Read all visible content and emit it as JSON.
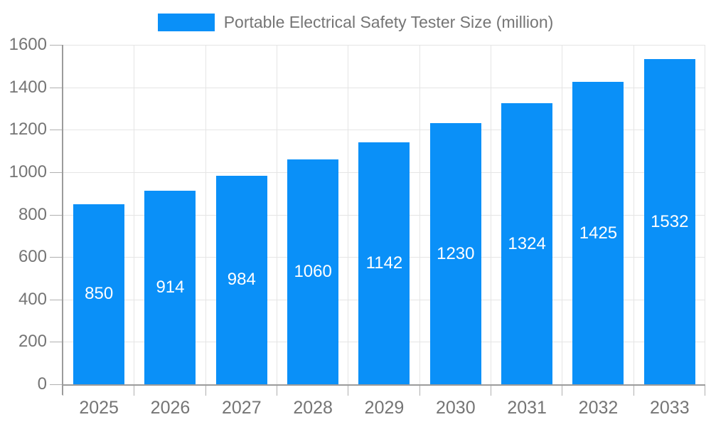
{
  "chart_data": {
    "type": "bar",
    "title": "Portable Electrical Safety Tester Size (million)",
    "categories": [
      "2025",
      "2026",
      "2027",
      "2028",
      "2029",
      "2030",
      "2031",
      "2032",
      "2033"
    ],
    "values": [
      850,
      914,
      984,
      1060,
      1142,
      1230,
      1324,
      1425,
      1532
    ],
    "xlabel": "",
    "ylabel": "",
    "ylim": [
      0,
      1600
    ],
    "yticks": [
      0,
      200,
      400,
      600,
      800,
      1000,
      1200,
      1400,
      1600
    ],
    "grid": true,
    "legend_position": "top",
    "bar_label_position": "center-of-bar",
    "colors": {
      "bar": "#0a90f8",
      "bar_label": "#ffffff",
      "axis_text": "#757575",
      "legend_text": "#757575",
      "axis_line": "#9b9b9b",
      "gridline": "#e5e5e5",
      "tick": "#b0b0b0",
      "background": "#ffffff"
    }
  }
}
